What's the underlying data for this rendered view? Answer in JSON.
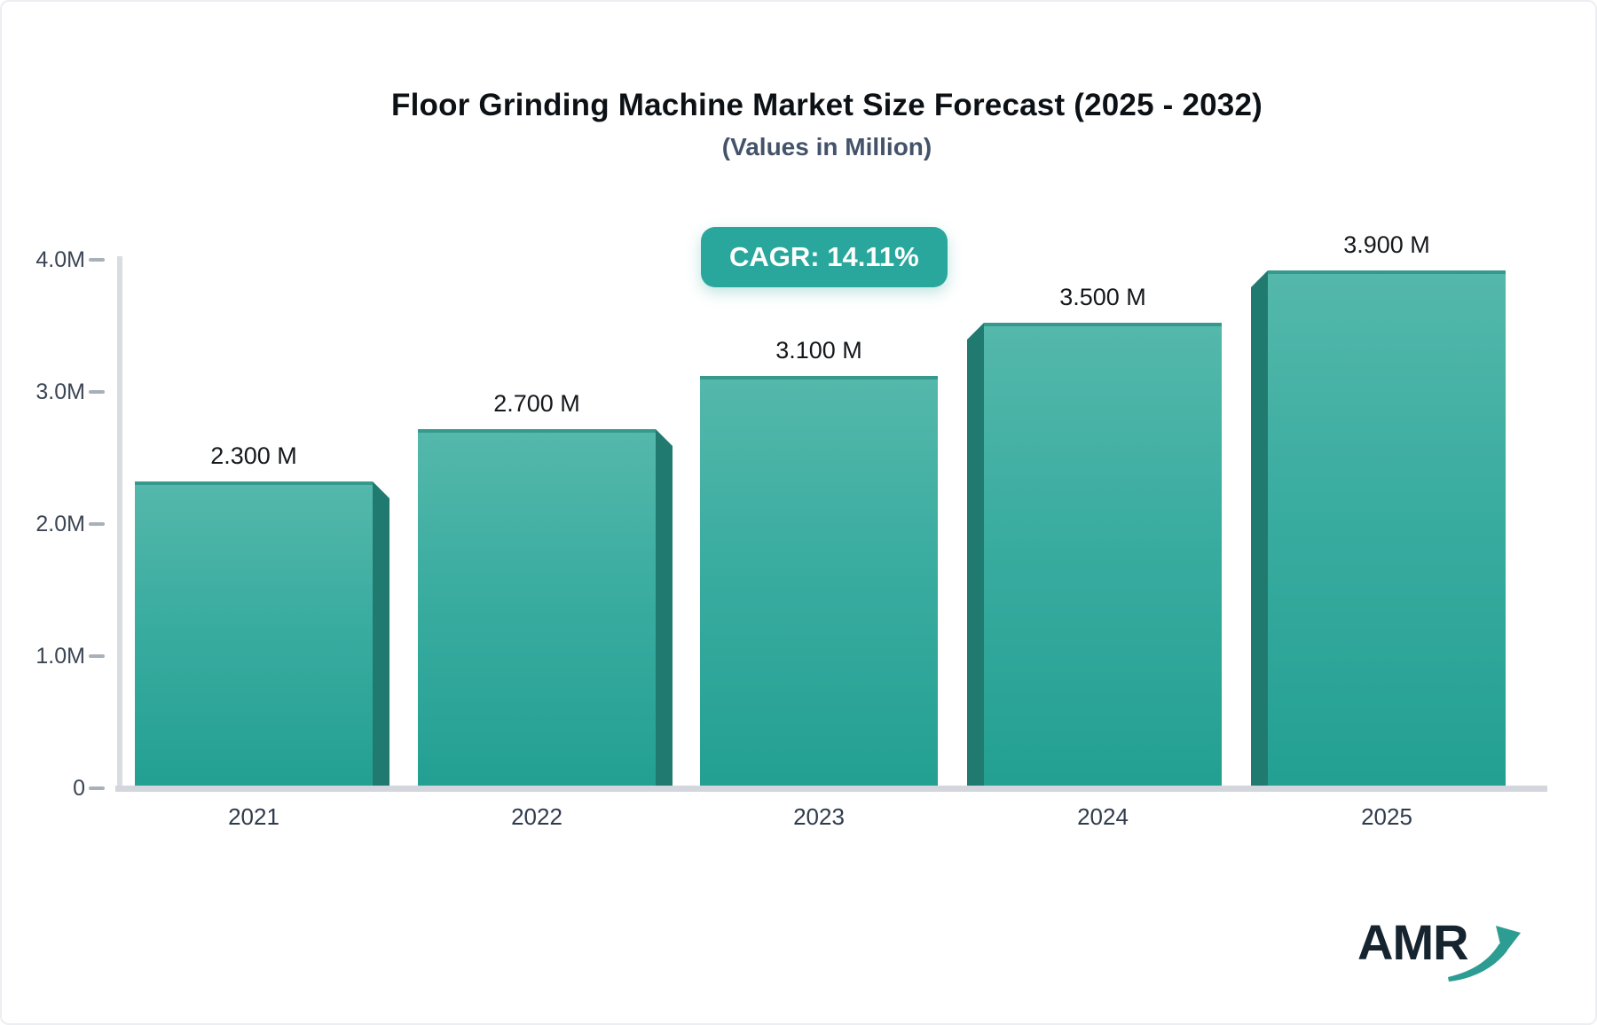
{
  "header": {
    "title": "Floor Grinding Machine Market Size Forecast (2025 - 2032)",
    "subtitle": "(Values in Million)"
  },
  "badge": {
    "label": "CAGR: 14.11%"
  },
  "chart_data": {
    "type": "bar",
    "title": "Floor Grinding Machine Market Size Forecast (2025 - 2032)",
    "subtitle": "(Values in Million)",
    "categories": [
      "2021",
      "2022",
      "2023",
      "2024",
      "2025"
    ],
    "values": [
      2.3,
      2.7,
      3.1,
      3.5,
      3.9
    ],
    "value_labels": [
      "2.300 M",
      "2.700 M",
      "3.100 M",
      "3.500 M",
      "3.900 M"
    ],
    "y_axis": [
      {
        "label": "4.0M",
        "value": 4.0
      },
      {
        "label": "3.0M",
        "value": 3.0
      },
      {
        "label": "2.0M",
        "value": 2.0
      },
      {
        "label": "1.0M",
        "value": 1.0
      },
      {
        "label": "0",
        "value": 0.0
      }
    ],
    "ylim": [
      0,
      4.0
    ],
    "xlabel": "",
    "ylabel": "",
    "grid": false,
    "legend": false,
    "annotations": [
      "CAGR: 14.11%"
    ]
  },
  "colors": {
    "bar_top": "#54b8ab",
    "bar_bottom": "#23a092",
    "bar_side": "#217a70",
    "badge_bg": "#2aa79c",
    "axis_line": "#d3d7dd",
    "tick": "#a8b0ba",
    "subtitle_text": "#44536a",
    "logo_arrow": "#2d9d93",
    "logo_text": "#16242f"
  },
  "logo": {
    "text": "AMR",
    "icon": "growth-arrow-icon"
  }
}
